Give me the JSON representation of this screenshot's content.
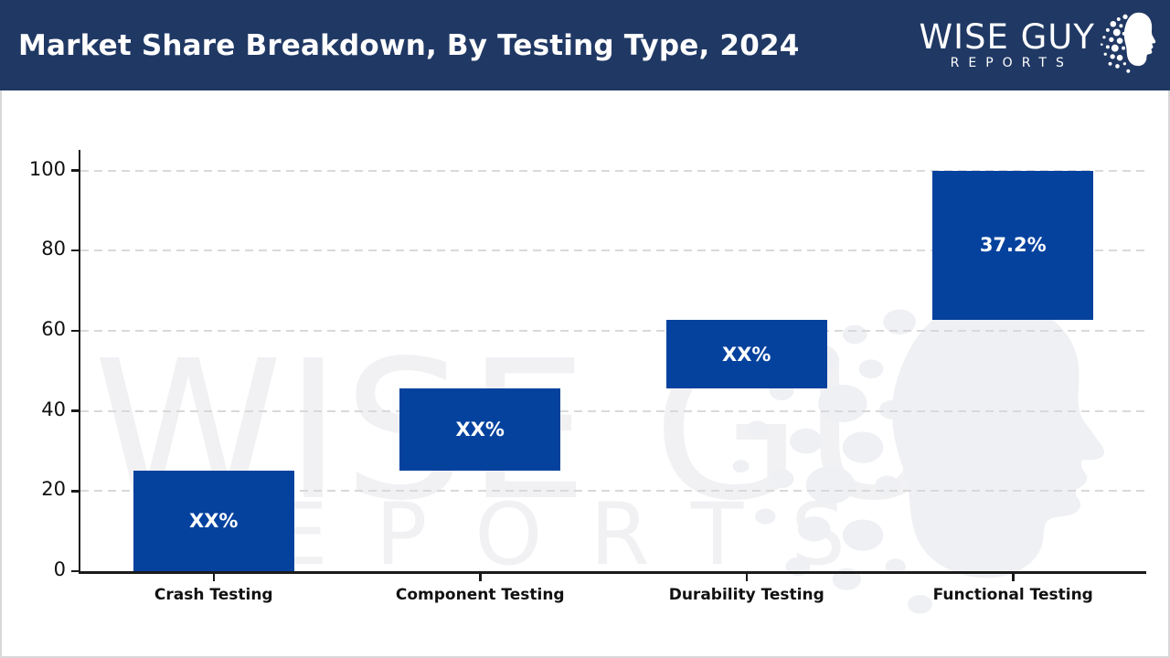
{
  "header": {
    "title": "Market Share Breakdown, By Testing Type, 2024",
    "bg_color": "#203864",
    "logo": {
      "line1": "WISE GUY",
      "line2": "REPORTS"
    }
  },
  "watermark": {
    "line1": "WISE GUY",
    "line2": "REPORTS"
  },
  "chart_data": {
    "type": "bar",
    "subtype": "floating-waterfall",
    "title": "Market Share Breakdown, By Testing Type, 2024",
    "categories": [
      "Crash Testing",
      "Component Testing",
      "Durability Testing",
      "Functional Testing"
    ],
    "segments": [
      [
        0,
        25.0
      ],
      [
        25.0,
        45.5
      ],
      [
        45.5,
        62.8
      ],
      [
        62.8,
        100.0
      ]
    ],
    "values": [
      25.0,
      20.5,
      17.3,
      37.2
    ],
    "bar_labels": [
      "XX%",
      "XX%",
      "XX%",
      "37.2%"
    ],
    "xlabel": "",
    "ylabel": "",
    "ylim": [
      0,
      100
    ],
    "yticks": [
      0,
      20,
      40,
      60,
      80,
      100
    ],
    "grid": true,
    "legend": false,
    "bar_color": "#05429E",
    "gridline_color": "#d9d9d9",
    "axis_color": "#1a1a1a"
  }
}
